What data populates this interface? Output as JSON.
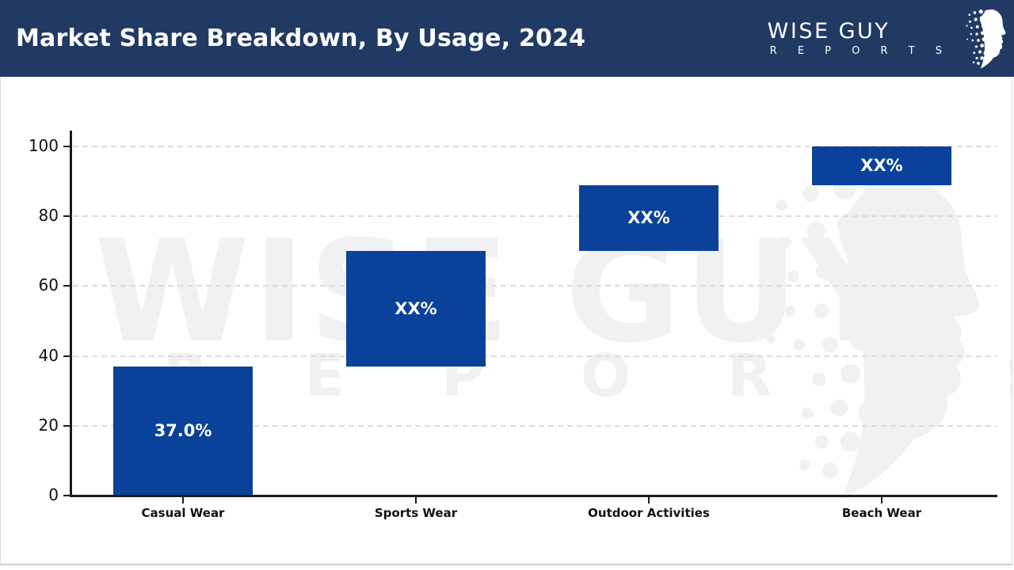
{
  "header": {
    "title": "Market Share Breakdown, By Usage, 2024",
    "logo": {
      "brand_line1": "WISE GUY",
      "brand_line2": "R E P O R T S"
    }
  },
  "watermark": {
    "line1": "WISE GUY",
    "line2": "R E P O R T S"
  },
  "chart_data": {
    "type": "bar",
    "variant": "waterfall",
    "title": "Market Share Breakdown, By Usage, 2024",
    "categories": [
      "Casual Wear",
      "Sports Wear",
      "Outdoor Activities",
      "Beach Wear"
    ],
    "segments": [
      {
        "category": "Casual Wear",
        "start": 0,
        "end": 37,
        "label": "37.0%"
      },
      {
        "category": "Sports Wear",
        "start": 37,
        "end": 70,
        "label": "XX%"
      },
      {
        "category": "Outdoor Activities",
        "start": 70,
        "end": 89,
        "label": "XX%"
      },
      {
        "category": "Beach Wear",
        "start": 89,
        "end": 100,
        "label": "XX%"
      }
    ],
    "ylim": [
      0,
      100
    ],
    "yticks": [
      0,
      20,
      40,
      60,
      80,
      100
    ],
    "xlabel": "",
    "ylabel": "",
    "legend": "none",
    "grid": "horizontal-dashed"
  },
  "colors": {
    "header_bg": "#213a64",
    "bar": "#0a429b",
    "bar_label": "#ffffff",
    "axis": "#1a1a1a",
    "grid": "#dcdcdc",
    "watermark": "#f1f1f3",
    "card_border": "#cfcfcf"
  }
}
